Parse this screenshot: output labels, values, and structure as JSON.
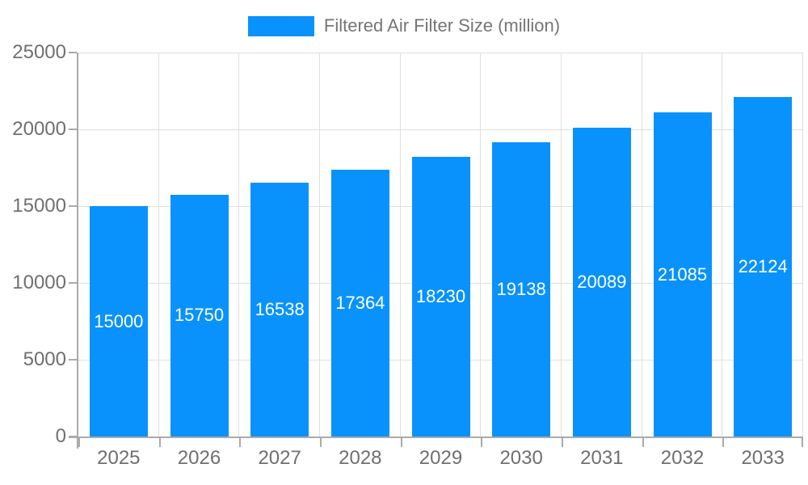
{
  "legend": {
    "label": "Filtered Air Filter Size (million)"
  },
  "chart_data": {
    "type": "bar",
    "title": "Filtered Air Filter Size (million)",
    "series_name": "Filtered Air Filter Size (million)",
    "categories": [
      "2025",
      "2026",
      "2027",
      "2028",
      "2029",
      "2030",
      "2031",
      "2032",
      "2033"
    ],
    "values": [
      15000,
      15750,
      16538,
      17364,
      18230,
      19138,
      20089,
      21085,
      22124
    ],
    "value_labels": [
      "15000",
      "15750",
      "16538",
      "17364",
      "18230",
      "19138",
      "20089",
      "21085",
      "22124"
    ],
    "xlabel": "",
    "ylabel": "",
    "ylim": [
      0,
      25000
    ],
    "yticks": [
      0,
      5000,
      10000,
      15000,
      20000,
      25000
    ],
    "ytick_labels": [
      "0",
      "5000",
      "10000",
      "15000",
      "20000",
      "25000"
    ],
    "grid": true,
    "value_label_position": "inside-center",
    "legend_position": "top-center",
    "colors": {
      "bar": "#0992FB",
      "value_label": "#FFFFFF",
      "axis_line": "#AAAAAA",
      "gridline": "#DFDFDF",
      "tick_label": "#6F6F6F",
      "legend_text": "#757575"
    }
  }
}
